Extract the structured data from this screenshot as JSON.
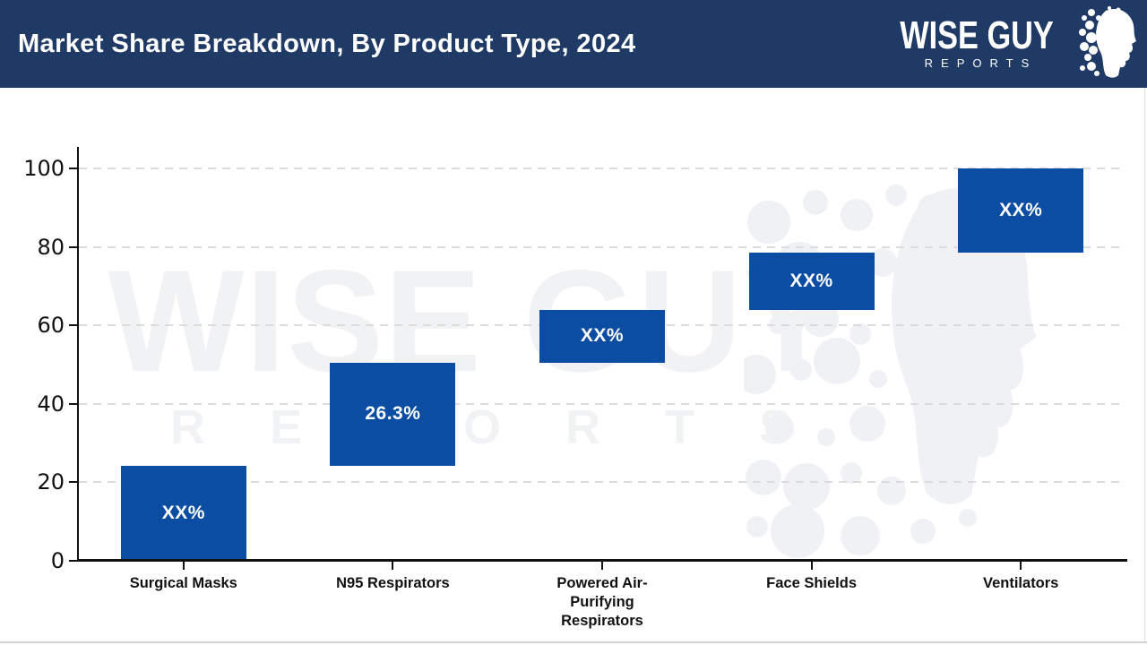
{
  "header": {
    "title": "Market Share Breakdown, By Product Type, 2024",
    "logo": {
      "name_line": "WISE GUY",
      "reports_line": "REPORTS"
    }
  },
  "watermark": {
    "name_line": "WISE GUY",
    "reports_line": "REPORTS"
  },
  "chart_data": {
    "type": "bar",
    "variant": "waterfall",
    "title": "Market Share Breakdown, By Product Type, 2024",
    "categories": [
      "Surgical Masks",
      "N95 Respirators",
      "Powered Air-Purifying Respirators",
      "Face Shields",
      "Ventilators"
    ],
    "segments": [
      {
        "category": "Surgical Masks",
        "start": 0,
        "end": 24.2,
        "label": "XX%"
      },
      {
        "category": "N95 Respirators",
        "start": 24.2,
        "end": 50.5,
        "label": "26.3%"
      },
      {
        "category": "Powered Air-Purifying Respirators",
        "start": 50.5,
        "end": 63.9,
        "label": "XX%"
      },
      {
        "category": "Face Shields",
        "start": 63.9,
        "end": 78.5,
        "label": "XX%"
      },
      {
        "category": "Ventilators",
        "start": 78.5,
        "end": 100,
        "label": "XX%"
      }
    ],
    "ylim": [
      0,
      100
    ],
    "yticks": [
      0,
      20,
      40,
      60,
      80,
      100
    ],
    "xlabel": "",
    "ylabel": "",
    "legend": "none",
    "grid": "horizontal-dashed",
    "colors": {
      "bar": "#0b4da2",
      "bar_label_text": "#ffffff",
      "grid": "#dcdcdc",
      "axis": "#111111",
      "header_bg": "#203a66",
      "watermark": "#f1f2f4"
    }
  }
}
